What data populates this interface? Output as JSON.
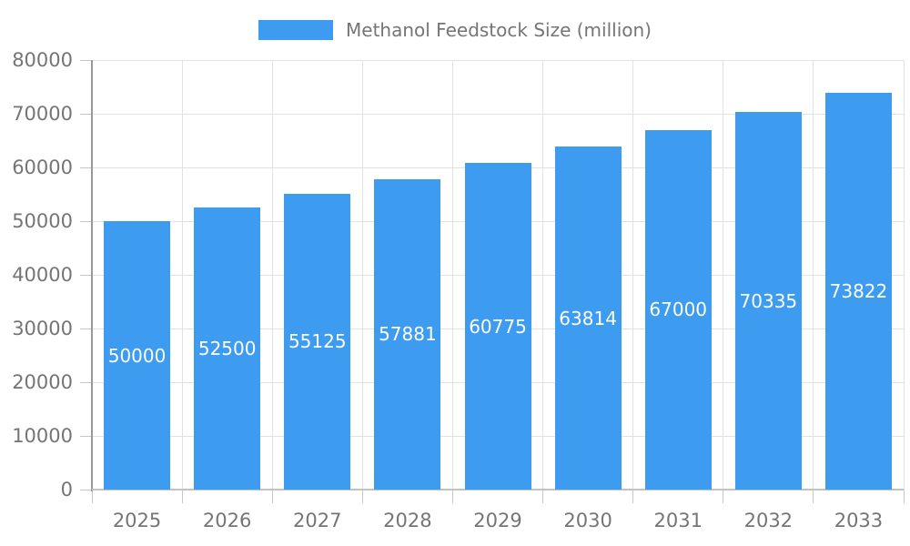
{
  "legend": {
    "label": "Methanol Feedstock Size (million)"
  },
  "chart_data": {
    "type": "bar",
    "title": "Methanol Feedstock Size (million)",
    "series_name": "Methanol Feedstock Size (million)",
    "categories": [
      "2025",
      "2026",
      "2027",
      "2028",
      "2029",
      "2030",
      "2031",
      "2032",
      "2033"
    ],
    "values": [
      50000,
      52500,
      55125,
      57881,
      60775,
      63814,
      67000,
      70335,
      73822
    ],
    "bar_value_labels": [
      "50000",
      "52500",
      "55125",
      "57881",
      "60775",
      "63814",
      "67000",
      "70335",
      "73822"
    ],
    "xlabel": "",
    "ylabel": "",
    "ylim": [
      0,
      80000
    ],
    "ytick_interval": 10000,
    "ytick_labels": [
      "0",
      "10000",
      "20000",
      "30000",
      "40000",
      "50000",
      "60000",
      "70000",
      "80000"
    ],
    "grid": true,
    "legend_position": "top-center",
    "colors": {
      "bar": "#3D9BF0",
      "axis_text": "#757575",
      "grid_line": "#e2e2e2",
      "y_axis_line": "#999999",
      "x_axis_line": "#c2c2c2",
      "tick_line": "#c6c6c6",
      "bar_label_text": "#ffffff"
    }
  }
}
